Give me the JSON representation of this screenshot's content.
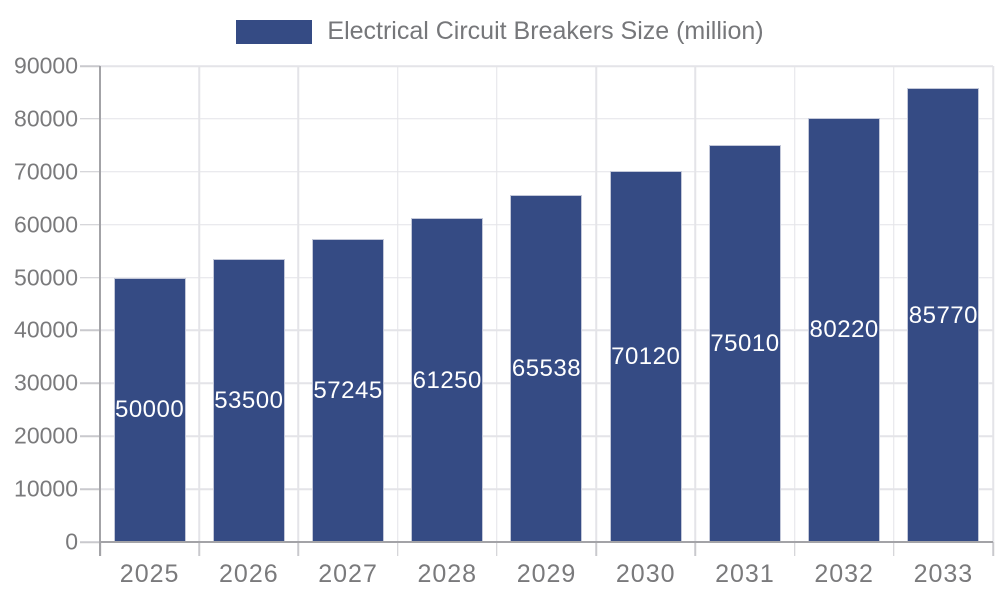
{
  "legend": {
    "position": "top",
    "label": "Electrical Circuit Breakers Size (million)"
  },
  "colors": {
    "bar": "#354b84",
    "bar_border": "#c3c8d9",
    "grid": "#e4e4e8",
    "axis": "#a3a3a7",
    "tick": "#c9c9cd",
    "axis_label": "#7a7a7c",
    "value_label": "#ffffff",
    "background": "#ffffff"
  },
  "chart_data": {
    "type": "bar",
    "title": "Electrical Circuit Breakers Size (million)",
    "categories": [
      "2025",
      "2026",
      "2027",
      "2028",
      "2029",
      "2030",
      "2031",
      "2032",
      "2033"
    ],
    "values": [
      50000,
      53500,
      57245,
      61250,
      65538,
      70120,
      75010,
      80220,
      85770
    ],
    "xlabel": "",
    "ylabel": "",
    "ylim": [
      0,
      90000
    ],
    "yticks": [
      0,
      10000,
      20000,
      30000,
      40000,
      50000,
      60000,
      70000,
      80000,
      90000
    ],
    "grid": "on",
    "legend_position": "top",
    "value_labels": "inside-center"
  }
}
